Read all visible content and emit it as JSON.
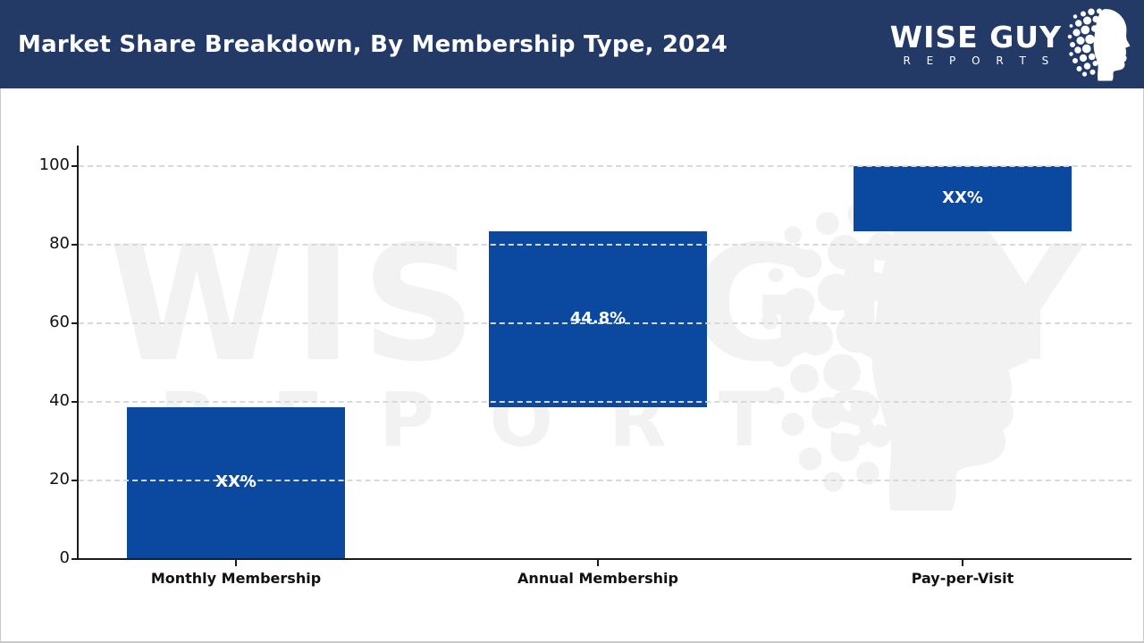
{
  "header": {
    "title": "Market Share Breakdown, By Membership Type, 2024",
    "logo": {
      "line1": "WISE GUY",
      "line2": "R E P O R T S"
    }
  },
  "watermark": {
    "line1": "WISE GUY",
    "line2": "REPORTS"
  },
  "colors": {
    "header_bg": "#233a66",
    "bar": "#0b489f",
    "grid": "#d9d9d9",
    "axis": "#1a1a1a",
    "watermark": "#f2f2f2",
    "bar_label": "#ffffff",
    "text": "#111111"
  },
  "chart_data": {
    "type": "bar",
    "subtype": "waterfall",
    "title": "Market Share Breakdown, By Membership Type, 2024",
    "xlabel": "",
    "ylabel": "",
    "categories": [
      "Monthly Membership",
      "Annual Membership",
      "Pay-per-Visit"
    ],
    "segments": [
      {
        "category": "Monthly Membership",
        "start": 0,
        "end": 38.6,
        "value": 38.6,
        "value_label": "XX%"
      },
      {
        "category": "Annual Membership",
        "start": 38.6,
        "end": 83.4,
        "value": 44.8,
        "value_label": "44.8%"
      },
      {
        "category": "Pay-per-Visit",
        "start": 83.4,
        "end": 100,
        "value": 16.6,
        "value_label": "XX%"
      }
    ],
    "yticks": [
      0,
      20,
      40,
      60,
      80,
      100
    ],
    "ylim": [
      0,
      105
    ],
    "grid": "horizontal-dashed",
    "legend": "none"
  }
}
